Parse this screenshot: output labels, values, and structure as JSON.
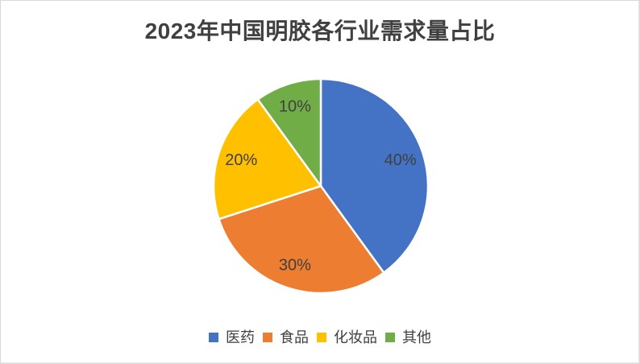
{
  "frame": {
    "background": "#ffffff",
    "border_color": "#d9d9d9"
  },
  "chart_data": {
    "type": "pie",
    "title": "2023年中国明胶各行业需求量占比",
    "categories": [
      "医药",
      "食品",
      "化妆品",
      "其他"
    ],
    "values": [
      40,
      30,
      20,
      10
    ],
    "data_labels": [
      "40%",
      "30%",
      "20%",
      "10%"
    ],
    "colors": [
      "#4472C4",
      "#ED7D31",
      "#FFC000",
      "#70AD47"
    ],
    "slice_border_color": "#ffffff",
    "title_color": "#404040",
    "label_color": "#404040",
    "legend_text_color": "#404040",
    "start_angle_deg": 0,
    "direction": "clockwise",
    "legend_position": "bottom"
  }
}
